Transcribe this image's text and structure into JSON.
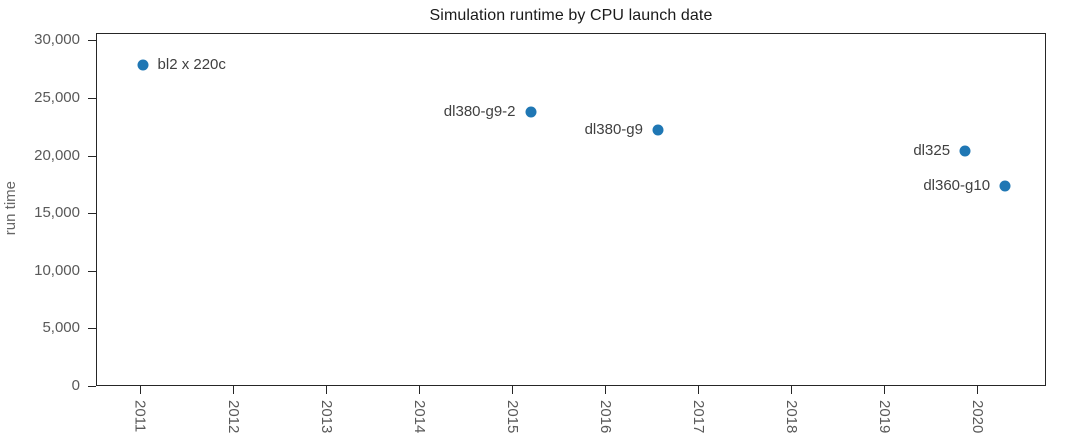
{
  "chart_data": {
    "type": "scatter",
    "title": "Simulation runtime by CPU launch date",
    "xlabel": "",
    "ylabel": "run time",
    "xlim": [
      2010.53,
      2020.74
    ],
    "ylim": [
      0,
      30650
    ],
    "grid": false,
    "legend": false,
    "marker_color": "#1f77b4",
    "x_ticks": [
      {
        "value": 2011,
        "label": "2011"
      },
      {
        "value": 2012,
        "label": "2012"
      },
      {
        "value": 2013,
        "label": "2013"
      },
      {
        "value": 2014,
        "label": "2014"
      },
      {
        "value": 2015,
        "label": "2015"
      },
      {
        "value": 2016,
        "label": "2016"
      },
      {
        "value": 2017,
        "label": "2017"
      },
      {
        "value": 2018,
        "label": "2018"
      },
      {
        "value": 2019,
        "label": "2019"
      },
      {
        "value": 2020,
        "label": "2020"
      }
    ],
    "y_ticks": [
      {
        "value": 0,
        "label": "0"
      },
      {
        "value": 5000,
        "label": "5,000"
      },
      {
        "value": 10000,
        "label": "10,000"
      },
      {
        "value": 15000,
        "label": "15,000"
      },
      {
        "value": 20000,
        "label": "20,000"
      },
      {
        "value": 25000,
        "label": "25,000"
      },
      {
        "value": 30000,
        "label": "30,000"
      }
    ],
    "points": [
      {
        "label": "bl2 x 220c",
        "x": 2011.03,
        "y": 27900,
        "label_side": "right"
      },
      {
        "label": "dl380-g9-2",
        "x": 2015.2,
        "y": 23800,
        "label_side": "left"
      },
      {
        "label": "dl380-g9",
        "x": 2016.57,
        "y": 22260,
        "label_side": "left"
      },
      {
        "label": "dl325",
        "x": 2019.87,
        "y": 20430,
        "label_side": "left"
      },
      {
        "label": "dl360-g10",
        "x": 2020.3,
        "y": 17400,
        "label_side": "left"
      }
    ]
  },
  "style": {
    "background": "#ffffff",
    "axis_color": "#262626",
    "tick_label_color": "#595959",
    "point_label_color": "#404040",
    "title_color": "#1a1a1a",
    "ylabel_color": "#666666"
  }
}
